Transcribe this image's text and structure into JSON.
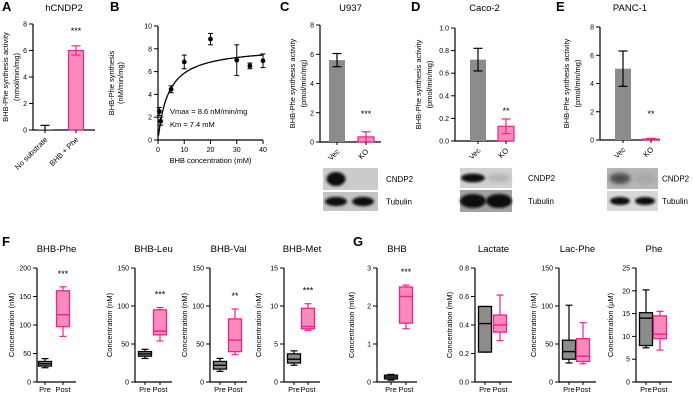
{
  "colors": {
    "pink_fill": "#F88BBA",
    "pink_stroke": "#EC2290",
    "gray_fill": "#8C8C8C",
    "gray_stroke": "#000000",
    "axis": "#000000",
    "background": "#FFFFFF"
  },
  "panels": {
    "A": {
      "label": "A"
    },
    "B": {
      "label": "B"
    },
    "C": {
      "label": "C"
    },
    "D": {
      "label": "D"
    },
    "E": {
      "label": "E"
    },
    "F": {
      "label": "F"
    },
    "G": {
      "label": "G"
    }
  },
  "chart_data": [
    {
      "id": "A",
      "type": "bar",
      "title": "hCNDP2",
      "ylabel": [
        "BHB-Phe synthesis activity",
        "(nmol/min/mg)"
      ],
      "ylim": [
        0,
        8
      ],
      "yticks": [
        0,
        2,
        4,
        6,
        8
      ],
      "categories": [
        "No substrate",
        "BHB + Phe"
      ],
      "values": [
        0.05,
        6.0
      ],
      "errors": [
        0.3,
        0.35
      ],
      "bar_colors": [
        "gray",
        "pink"
      ],
      "sig": [
        null,
        "***"
      ]
    },
    {
      "id": "B",
      "type": "scatter",
      "title": "",
      "ylabel": [
        "BHB-Phe synthesis",
        "(nM/min/mg)"
      ],
      "xlabel": "BHB concentration (mM)",
      "ylim": [
        0,
        10
      ],
      "yticks": [
        0,
        2,
        4,
        6,
        8,
        10
      ],
      "xlim": [
        0,
        40
      ],
      "xticks": [
        0,
        10,
        20,
        30,
        40
      ],
      "points": [
        {
          "x": 0.5,
          "y": 2.5,
          "e": 0.35
        },
        {
          "x": 1,
          "y": 1.65,
          "e": 0.35
        },
        {
          "x": 5,
          "y": 4.45,
          "e": 0.3
        },
        {
          "x": 10,
          "y": 6.85,
          "e": 0.6
        },
        {
          "x": 20,
          "y": 8.85,
          "e": 0.5
        },
        {
          "x": 30,
          "y": 7.0,
          "e": 1.35
        },
        {
          "x": 35,
          "y": 6.5,
          "e": 0.25
        },
        {
          "x": 40,
          "y": 6.95,
          "e": 0.6
        }
      ],
      "fit": {
        "vmax": 8.6,
        "km": 7.4,
        "vmax_label": "Vmax = 8.6 nM/min/mg",
        "km_label": "Km = 7.4 mM"
      }
    },
    {
      "id": "C",
      "type": "bar",
      "title": "U937",
      "ylabel": [
        "BHB-Phe synthesis activity",
        "(pmol/min/mg)"
      ],
      "ylim": [
        0,
        8
      ],
      "yticks": [
        0,
        2,
        4,
        6,
        8
      ],
      "categories": [
        "Vec",
        "KO"
      ],
      "values": [
        5.6,
        0.35
      ],
      "errors": [
        0.45,
        0.35
      ],
      "bar_colors": [
        "gray",
        "pink"
      ],
      "sig": [
        null,
        "***"
      ]
    },
    {
      "id": "D",
      "type": "bar",
      "title": "Caco-2",
      "ylabel": [
        "BHB-Phe synthesis activity",
        "(pmol/min/mg)"
      ],
      "ylim": [
        0,
        1
      ],
      "yticks": [
        0,
        0.2,
        0.4,
        0.6,
        0.8,
        1
      ],
      "categories": [
        "Vec",
        "KO"
      ],
      "values": [
        0.72,
        0.13
      ],
      "errors": [
        0.1,
        0.065
      ],
      "bar_colors": [
        "gray",
        "pink"
      ],
      "sig": [
        null,
        "**"
      ]
    },
    {
      "id": "E",
      "type": "bar",
      "title": "PANC-1",
      "ylabel": [
        "BHB-Phe synthesis activity",
        "(pmol/min/mg)"
      ],
      "ylim": [
        0,
        8
      ],
      "yticks": [
        0,
        2,
        4,
        6,
        8
      ],
      "categories": [
        "Vec",
        "KO"
      ],
      "values": [
        5.05,
        0.07
      ],
      "errors": [
        1.25,
        0.05
      ],
      "bar_colors": [
        "gray",
        "pink"
      ],
      "sig": [
        null,
        "**"
      ]
    },
    {
      "id": "F1",
      "type": "box",
      "title": "BHB-Phe",
      "ylabel": [
        "Concentration (nM)"
      ],
      "ylim": [
        0,
        200
      ],
      "yticks": [
        0,
        50,
        100,
        150,
        200
      ],
      "categories": [
        "Pre",
        "Post"
      ],
      "boxes": [
        {
          "color": "gray",
          "whislo": 25,
          "q1": 28,
          "med": 32,
          "q3": 36,
          "whishi": 41
        },
        {
          "color": "pink",
          "whislo": 80,
          "q1": 97,
          "med": 118,
          "q3": 160,
          "whishi": 167
        }
      ],
      "sig": "***"
    },
    {
      "id": "F2",
      "type": "box",
      "title": "BHB-Leu",
      "ylabel": [
        "Concentration (nM)"
      ],
      "ylim": [
        0,
        150
      ],
      "yticks": [
        0,
        50,
        100,
        150
      ],
      "categories": [
        "Pre",
        "Post"
      ],
      "boxes": [
        {
          "color": "gray",
          "whislo": 31,
          "q1": 34,
          "med": 37,
          "q3": 40,
          "whishi": 43
        },
        {
          "color": "pink",
          "whislo": 54,
          "q1": 62,
          "med": 67,
          "q3": 95,
          "whishi": 98
        }
      ],
      "sig": "***"
    },
    {
      "id": "F3",
      "type": "box",
      "title": "BHB-Val",
      "ylabel": [
        "Concentration (nM)"
      ],
      "ylim": [
        0,
        150
      ],
      "yticks": [
        0,
        50,
        100,
        150
      ],
      "categories": [
        "Pre",
        "Post"
      ],
      "boxes": [
        {
          "color": "gray",
          "whislo": 14,
          "q1": 17,
          "med": 22,
          "q3": 27,
          "whishi": 31
        },
        {
          "color": "pink",
          "whislo": 36,
          "q1": 40,
          "med": 55,
          "q3": 83,
          "whishi": 96
        }
      ],
      "sig": "**"
    },
    {
      "id": "F4",
      "type": "box",
      "title": "BHB-Met",
      "ylabel": [
        "Concentration (nM)"
      ],
      "ylim": [
        0,
        15
      ],
      "yticks": [
        0,
        5,
        10,
        15
      ],
      "categories": [
        "Pre",
        "Post"
      ],
      "boxes": [
        {
          "color": "gray",
          "whislo": 2.2,
          "q1": 2.5,
          "med": 3.0,
          "q3": 3.7,
          "whishi": 4.1
        },
        {
          "color": "pink",
          "whislo": 6.8,
          "q1": 7.0,
          "med": 7.3,
          "q3": 9.7,
          "whishi": 10.3
        }
      ],
      "sig": "***"
    },
    {
      "id": "G1",
      "type": "box",
      "title": "BHB",
      "ylabel": [
        "Concentration (mM)"
      ],
      "ylim": [
        0,
        3
      ],
      "yticks": [
        0,
        1,
        2,
        3
      ],
      "categories": [
        "Pre",
        "Post"
      ],
      "boxes": [
        {
          "color": "gray",
          "whislo": 0.05,
          "q1": 0.08,
          "med": 0.13,
          "q3": 0.18,
          "whishi": 0.2
        },
        {
          "color": "pink",
          "whislo": 1.4,
          "q1": 1.55,
          "med": 2.25,
          "q3": 2.5,
          "whishi": 2.55
        }
      ],
      "sig": "***"
    },
    {
      "id": "G2",
      "type": "box",
      "title": "Lactate",
      "ylabel": [
        "Concentration (mM)"
      ],
      "ylim": [
        0,
        0.8
      ],
      "yticks": [
        0,
        0.2,
        0.4,
        0.6,
        0.8
      ],
      "categories": [
        "Pre",
        "Post"
      ],
      "boxes": [
        {
          "color": "gray",
          "whislo": 0.21,
          "q1": 0.21,
          "med": 0.41,
          "q3": 0.53,
          "whishi": 0.53
        },
        {
          "color": "pink",
          "whislo": 0.29,
          "q1": 0.35,
          "med": 0.4,
          "q3": 0.47,
          "whishi": 0.61
        }
      ],
      "sig": null
    },
    {
      "id": "G3",
      "type": "box",
      "title": "Lac-Phe",
      "ylabel": [
        "Concentration (nM)"
      ],
      "ylim": [
        0,
        150
      ],
      "yticks": [
        0,
        50,
        100,
        150
      ],
      "categories": [
        "Pre",
        "Post"
      ],
      "boxes": [
        {
          "color": "gray",
          "whislo": 25,
          "q1": 30,
          "med": 40,
          "q3": 55,
          "whishi": 101
        },
        {
          "color": "pink",
          "whislo": 24,
          "q1": 27,
          "med": 34,
          "q3": 57,
          "whishi": 78
        }
      ],
      "sig": null
    },
    {
      "id": "G4",
      "type": "box",
      "title": "Phe",
      "ylabel": [
        "Concentration (μM)"
      ],
      "ylim": [
        0,
        25
      ],
      "yticks": [
        0,
        5,
        10,
        15,
        20,
        25
      ],
      "categories": [
        "Pre",
        "Post"
      ],
      "boxes": [
        {
          "color": "gray",
          "whislo": 7.5,
          "q1": 8,
          "med": 14,
          "q3": 15.2,
          "whishi": 20.2
        },
        {
          "color": "pink",
          "whislo": 7,
          "q1": 9.5,
          "med": 10.5,
          "q3": 14.5,
          "whishi": 15.5
        }
      ],
      "sig": null
    }
  ],
  "blots": [
    {
      "panel": "C",
      "rows": [
        {
          "label": "CNDP2",
          "lanes": [
            "strong",
            "none"
          ]
        },
        {
          "label": "Tubulin",
          "lanes": [
            "strong",
            "strong"
          ]
        }
      ]
    },
    {
      "panel": "D",
      "rows": [
        {
          "label": "CNDP2",
          "lanes": [
            "strong",
            "faint"
          ]
        },
        {
          "label": "Tubulin",
          "lanes": [
            "strong",
            "strong"
          ]
        }
      ]
    },
    {
      "panel": "E",
      "rows": [
        {
          "label": "CNDP2",
          "lanes": [
            "medium",
            "faint"
          ]
        },
        {
          "label": "Tubulin",
          "lanes": [
            "strong",
            "strong"
          ]
        }
      ]
    }
  ]
}
